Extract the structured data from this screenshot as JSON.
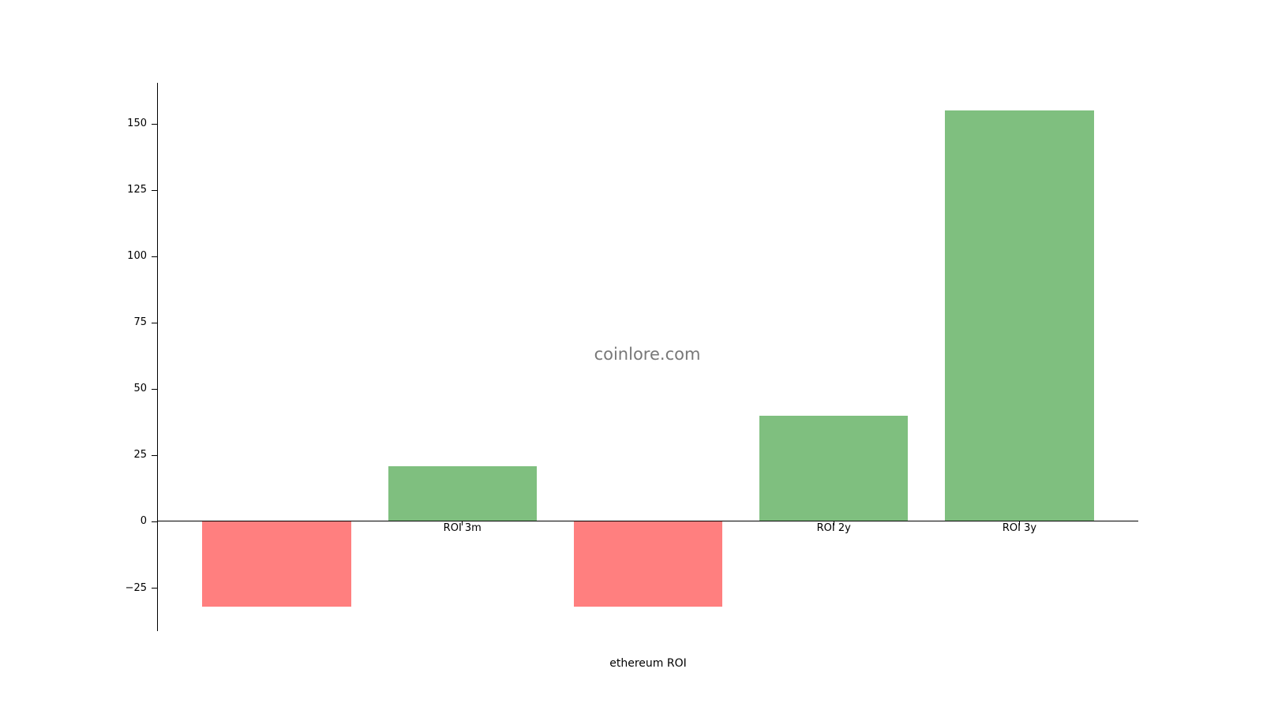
{
  "chart_data": {
    "type": "bar",
    "title": "",
    "xlabel": "ethereum ROI",
    "ylabel": "",
    "watermark": "coinlore.com",
    "categories": [
      "",
      "ROI 3m",
      "",
      "ROI 2y",
      "ROI 3y"
    ],
    "values": [
      -32,
      21,
      -32,
      40,
      155
    ],
    "bar_colors": [
      "#ff7f7f",
      "#7fbf7f",
      "#ff7f7f",
      "#7fbf7f",
      "#7fbf7f"
    ],
    "positive_color": "#7fbf7f",
    "negative_color": "#ff7f7f",
    "yticks": [
      {
        "v": 150,
        "label": "150"
      },
      {
        "v": 125,
        "label": "125"
      },
      {
        "v": 100,
        "label": "100"
      },
      {
        "v": 75,
        "label": "75"
      },
      {
        "v": 50,
        "label": "50"
      },
      {
        "v": 25,
        "label": "25"
      },
      {
        "v": 0,
        "label": "0"
      },
      {
        "v": -25,
        "label": "−25"
      }
    ],
    "ylim": [
      -41.2,
      165.5
    ],
    "xlim": [
      -0.64,
      4.64
    ],
    "bar_width": 0.8,
    "grid": false,
    "legend": "none",
    "axis_color": "#000000",
    "text_color": "#000000",
    "watermark_color": "#787878",
    "background_color": "#ffffff"
  }
}
